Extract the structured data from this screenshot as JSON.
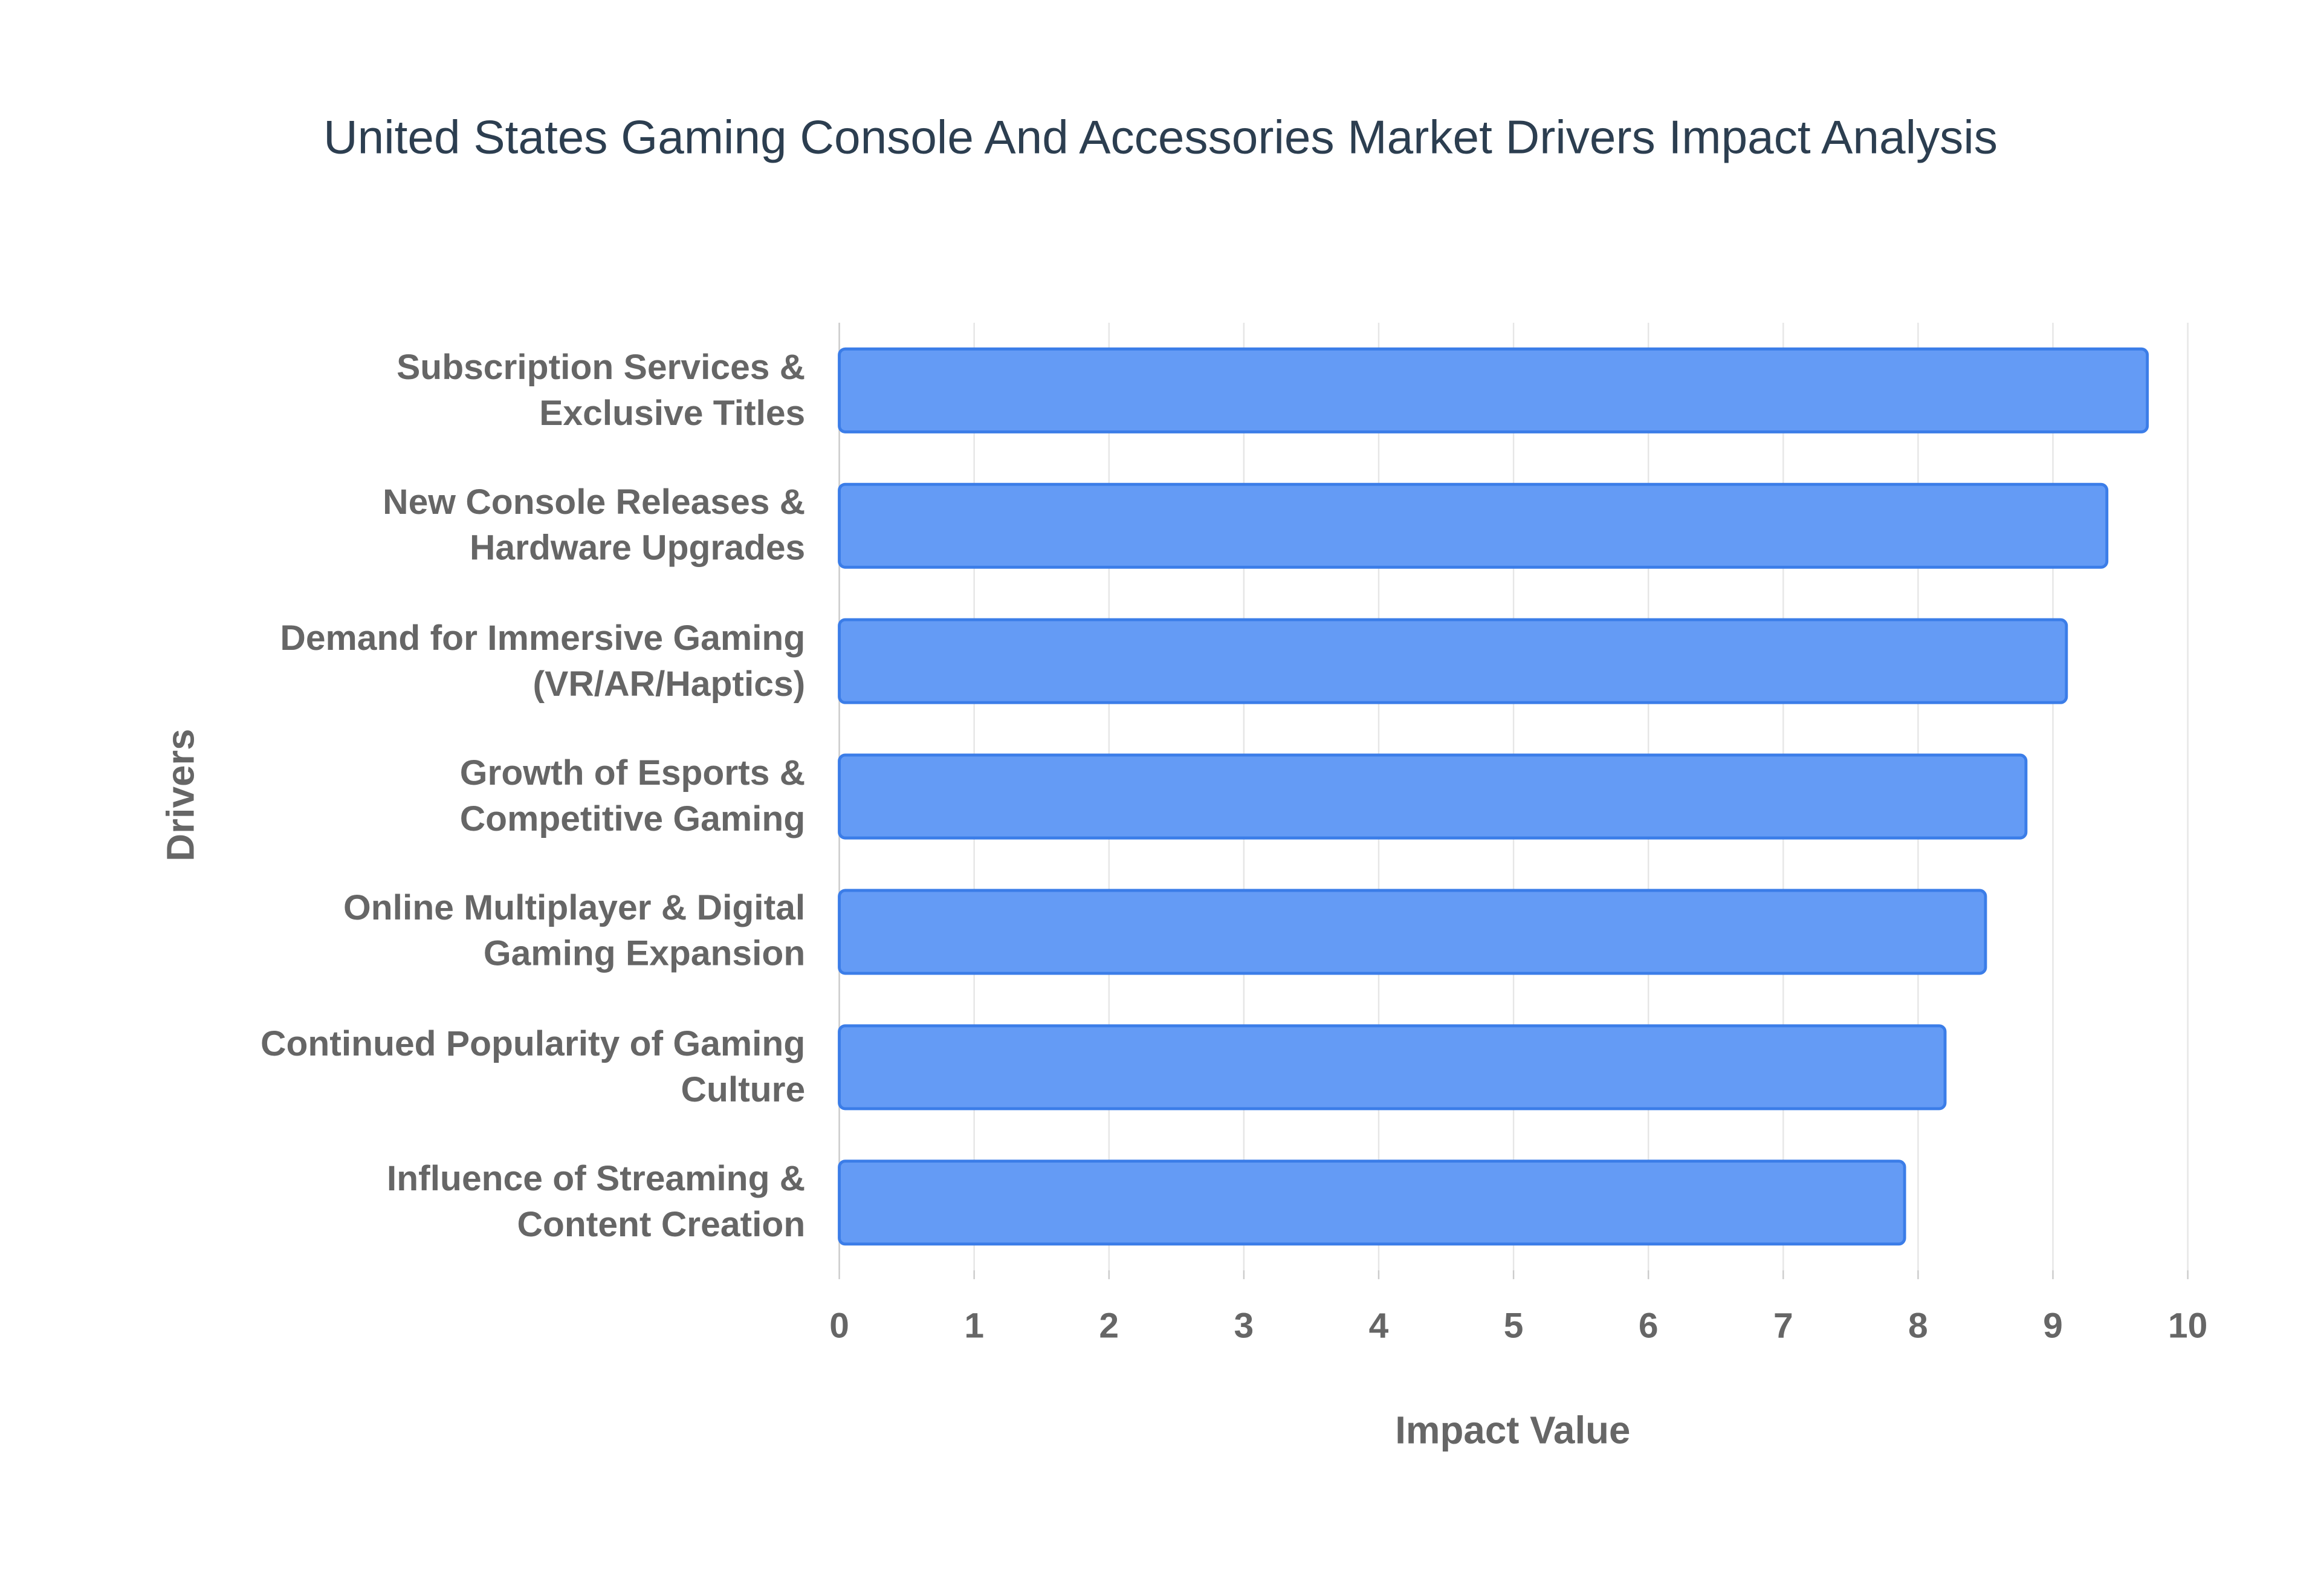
{
  "chart_data": {
    "type": "bar",
    "orientation": "horizontal",
    "title": "United States Gaming Console And Accessories Market Drivers Impact Analysis",
    "x_label": "Impact Value",
    "y_label": "Drivers",
    "categories": [
      "Subscription Services & Exclusive Titles",
      "New Console Releases & Hardware Upgrades",
      "Demand for Immersive Gaming (VR/AR/Haptics)",
      "Growth of Esports & Competitive Gaming",
      "Online Multiplayer & Digital Gaming Expansion",
      "Continued Popularity of Gaming Culture",
      "Influence of Streaming & Content Creation"
    ],
    "values": [
      9.7,
      9.4,
      9.1,
      8.8,
      8.5,
      8.2,
      7.9
    ],
    "color": "#6199f5",
    "xlim": [
      0,
      10
    ],
    "xticks": [
      0,
      1,
      2,
      3,
      4,
      5,
      6,
      7,
      8,
      9,
      10
    ],
    "grid": true
  }
}
